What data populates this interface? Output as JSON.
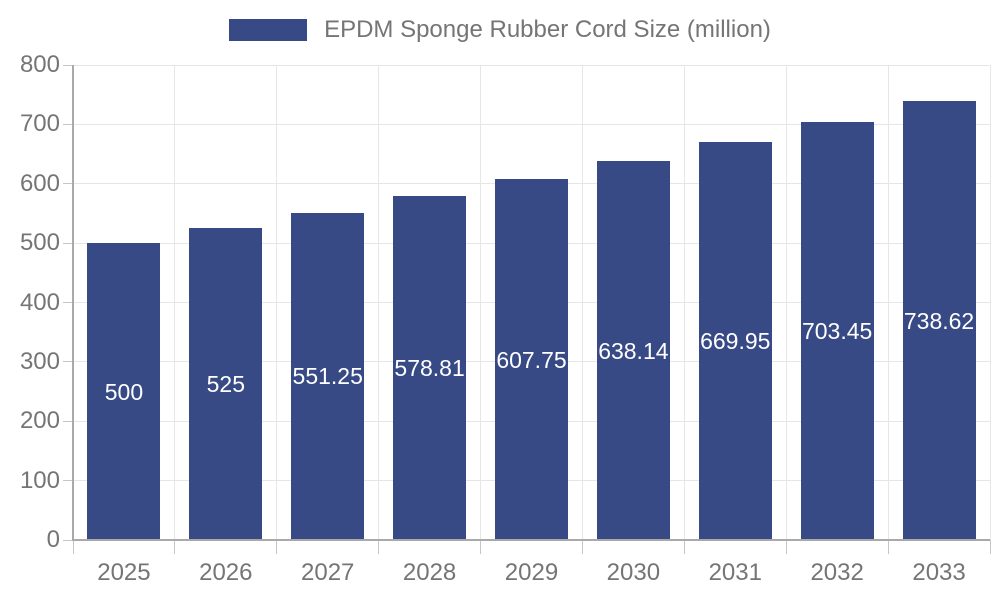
{
  "legend": {
    "label": "EPDM Sponge Rubber Cord Size (million)"
  },
  "chart_data": {
    "type": "bar",
    "title": "",
    "xlabel": "",
    "ylabel": "",
    "categories": [
      "2025",
      "2026",
      "2027",
      "2028",
      "2029",
      "2030",
      "2031",
      "2032",
      "2033"
    ],
    "series": [
      {
        "name": "EPDM Sponge Rubber Cord Size (million)",
        "values": [
          500,
          525,
          551.25,
          578.81,
          607.75,
          638.14,
          669.95,
          703.45,
          738.62
        ]
      }
    ],
    "value_labels": [
      "500",
      "525",
      "551.25",
      "578.81",
      "607.75",
      "638.14",
      "669.95",
      "703.45",
      "738.62"
    ],
    "ylim": [
      0,
      800
    ],
    "yticks": [
      "0",
      "100",
      "200",
      "300",
      "400",
      "500",
      "600",
      "700",
      "800"
    ],
    "grid": true,
    "legend_position": "top",
    "colors": {
      "bar": "#374a85",
      "grid": "#e6e6e6",
      "axis": "#a9a9a9",
      "tick": "#c6c6c6",
      "text": "#757575",
      "value_label": "#ffffff",
      "background": "#ffffff"
    }
  }
}
